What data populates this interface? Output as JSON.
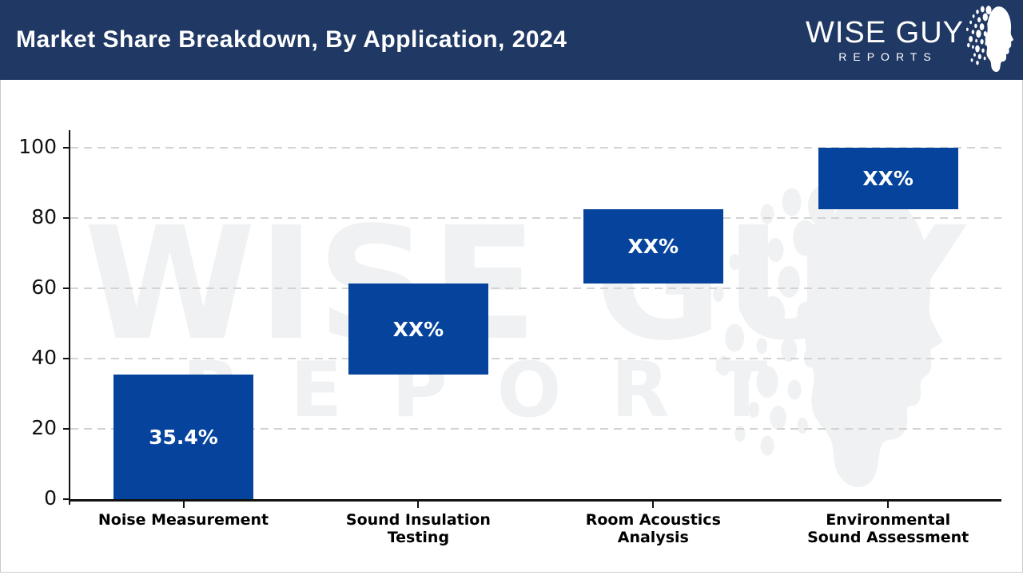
{
  "header": {
    "title": "Market Share Breakdown, By Application, 2024",
    "logo": {
      "line1": "WISE GUY",
      "line2": "REPORTS"
    }
  },
  "watermark": {
    "line1": "WISE GUY",
    "line2": "REPORTS"
  },
  "colors": {
    "header_bg": "#1f3864",
    "bar": "#05439c",
    "bar_label": "#ffffff",
    "watermark": "#eff1f3",
    "gridline": "#d3d3d3",
    "axis": "#111111"
  },
  "chart_data": {
    "type": "bar",
    "subtype": "waterfall",
    "title": "Market Share Breakdown, By Application, 2024",
    "categories": [
      "Noise Measurement",
      "Sound Insulation Testing",
      "Room Acoustics Analysis",
      "Environmental Sound Assessment"
    ],
    "segments": [
      {
        "category": "Noise Measurement",
        "category_lines": [
          "Noise Measurement"
        ],
        "start": 0,
        "end": 35.4,
        "value": 35.4,
        "label": "35.4%"
      },
      {
        "category": "Sound Insulation Testing",
        "category_lines": [
          "Sound Insulation",
          "Testing"
        ],
        "start": 35.4,
        "end": 61.4,
        "value": 26.0,
        "label": "XX%"
      },
      {
        "category": "Room Acoustics Analysis",
        "category_lines": [
          "Room Acoustics",
          "Analysis"
        ],
        "start": 61.4,
        "end": 82.6,
        "value": 21.2,
        "label": "XX%"
      },
      {
        "category": "Environmental Sound Assessment",
        "category_lines": [
          "Environmental",
          "Sound Assessment"
        ],
        "start": 82.6,
        "end": 100,
        "value": 17.4,
        "label": "XX%"
      }
    ],
    "ylim": [
      0,
      100
    ],
    "yticks": [
      0,
      20,
      40,
      60,
      80,
      100
    ],
    "grid": true,
    "grid_style": "dashed",
    "legend": "none",
    "xlabel": "",
    "ylabel": ""
  }
}
